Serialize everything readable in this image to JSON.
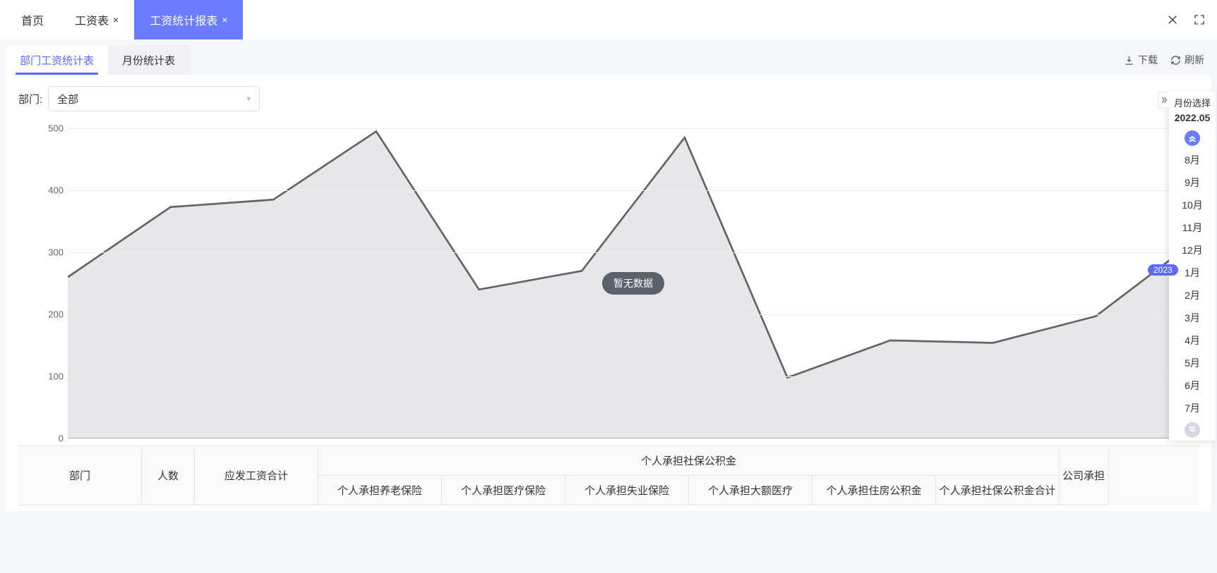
{
  "top_tabs": {
    "items": [
      {
        "label": "首页",
        "closable": false,
        "active": false
      },
      {
        "label": "工资表",
        "closable": true,
        "active": false
      },
      {
        "label": "工资统计报表",
        "closable": true,
        "active": true
      }
    ]
  },
  "sub_tabs": {
    "items": [
      {
        "label": "部门工资统计表",
        "active": true
      },
      {
        "label": "月份统计表",
        "active": false
      }
    ]
  },
  "actions": {
    "download_label": "下载",
    "refresh_label": "刷新"
  },
  "filter": {
    "dept_label": "部门:",
    "dept_value": "全部"
  },
  "chart": {
    "type": "area",
    "ylim": [
      0,
      500
    ],
    "ytick_step": 100,
    "yticks": [
      0,
      100,
      200,
      300,
      400,
      500
    ],
    "values": [
      260,
      373,
      385,
      495,
      240,
      270,
      485,
      98,
      158,
      154,
      197,
      323
    ],
    "fill_color": "#e7e7e9",
    "stroke_color": "#656565",
    "stroke_width": 1.2,
    "grid_color": "#ececec",
    "background_color": "#ffffff",
    "label_color": "#666666",
    "label_fontsize": 13,
    "tooltip_text": "暂无数据",
    "tooltip_bg": "#5a616b",
    "tooltip_color": "#ffffff"
  },
  "table": {
    "group_header": "个人承担社保公积金",
    "row1_fixed": [
      "部门",
      "人数",
      "应发工资合计"
    ],
    "row2_cols": [
      "个人承担养老保险",
      "个人承担医疗保险",
      "个人承担失业保险",
      "个人承担大额医疗",
      "个人承担住房公积金",
      "个人承担社保公积金合计",
      "公司承担"
    ],
    "col_widths_fixed": [
      175,
      75,
      175
    ],
    "col_width_sub": 175,
    "header_bg": "#fafafa",
    "border_color": "#e6e6e6"
  },
  "month_panel": {
    "title": "月份选择",
    "selected": "2022.05",
    "items": [
      "8月",
      "9月",
      "10月",
      "11月",
      "12月",
      "1月",
      "2月",
      "3月",
      "4月",
      "5月",
      "6月",
      "7月"
    ],
    "year_marker": {
      "index": 5,
      "label": "2023"
    }
  }
}
